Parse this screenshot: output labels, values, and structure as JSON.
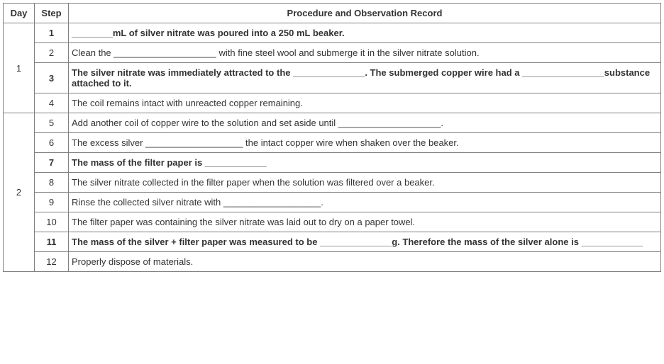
{
  "headers": {
    "day": "Day",
    "step": "Step",
    "procedure": "Procedure and Observation Record"
  },
  "day1": {
    "label": "1",
    "steps": {
      "s1": {
        "num": "1",
        "text": "________mL of silver nitrate was poured into a 250 mL beaker.",
        "bold": true
      },
      "s2": {
        "num": "2",
        "text": "Clean the ____________________ with fine steel wool and submerge it in the silver nitrate solution.",
        "bold": false
      },
      "s3": {
        "num": "3",
        "text": "The silver nitrate was immediately attracted to the ______________. The submerged copper wire had a ________________substance attached to it.",
        "bold": true
      },
      "s4": {
        "num": "4",
        "text": "The coil remains intact with unreacted copper remaining.",
        "bold": false
      }
    }
  },
  "day2": {
    "label": "2",
    "steps": {
      "s5": {
        "num": "5",
        "text": "Add another coil of copper wire to the solution and set aside until ____________________.",
        "bold": false
      },
      "s6": {
        "num": "6",
        "text": "The excess silver ___________________ the intact copper wire when shaken over the beaker.",
        "bold": false
      },
      "s7": {
        "num": "7",
        "text": "The mass of the filter paper is ____________",
        "bold": true
      },
      "s8": {
        "num": "8",
        "text": "The silver nitrate collected in the filter paper when the solution was filtered over a beaker.",
        "bold": false
      },
      "s9": {
        "num": "9",
        "text": "Rinse the collected silver nitrate with ___________________.",
        "bold": false
      },
      "s10": {
        "num": "10",
        "text": "The filter paper was containing the silver nitrate was laid out to dry on a paper towel.",
        "bold": false
      },
      "s11": {
        "num": "11",
        "text": "The mass of the silver  + filter paper was measured to be ______________g. Therefore the mass of the silver alone is ____________",
        "bold": true
      },
      "s12": {
        "num": "12",
        "text": "Properly dispose of materials.",
        "bold": false
      }
    }
  }
}
